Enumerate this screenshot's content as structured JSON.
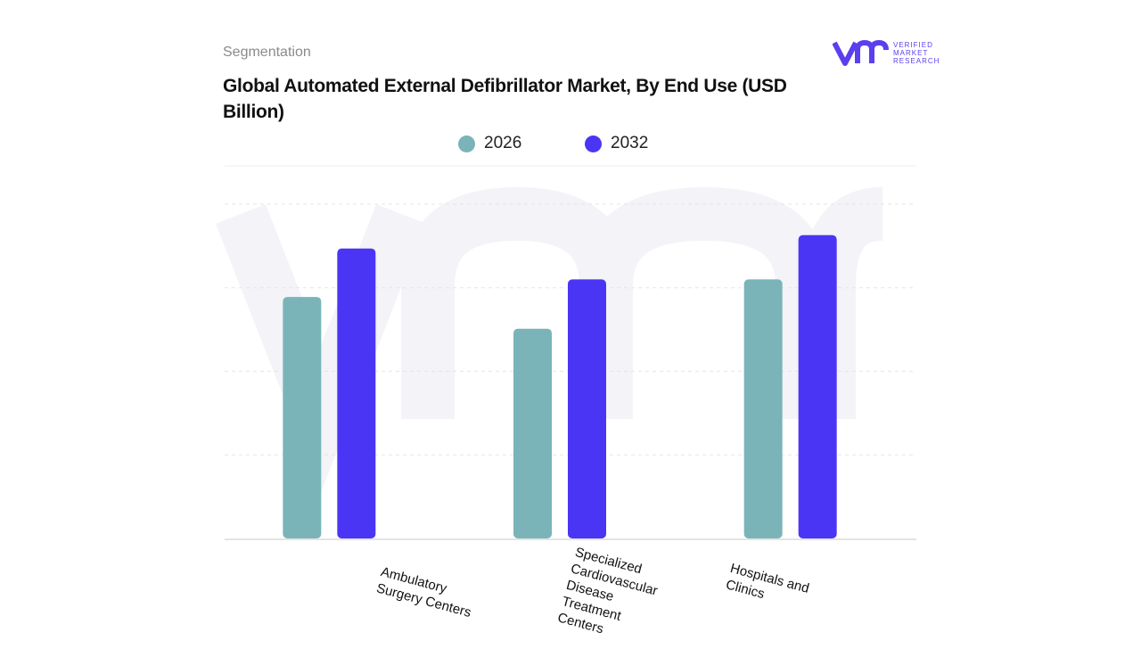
{
  "header": {
    "segment_label": "Segmentation",
    "title": "Global Automated External Defibrillator Market, By End Use (USD Billion)"
  },
  "logo": {
    "text_line1": "VERIFIED",
    "text_line2": "MARKET",
    "text_line3": "RESEARCH",
    "color": "#5a3ff0"
  },
  "chart_data": {
    "type": "bar",
    "title": "Global Automated External Defibrillator Market, By End Use (USD Billion)",
    "categories": [
      "Ambulatory Surgery Centers",
      "Specialized Cardiovascular Disease Treatment Centers",
      "Hospitals and Clinics"
    ],
    "series": [
      {
        "name": "2026",
        "values": [
          2.89,
          2.51,
          3.1
        ],
        "color": "#7ab4b8"
      },
      {
        "name": "2032",
        "values": [
          3.47,
          3.1,
          3.63
        ],
        "color": "#4b35f5"
      }
    ],
    "ylim": [
      0,
      4
    ],
    "grid": true,
    "legend": "top",
    "xlabel": "",
    "ylabel": ""
  }
}
